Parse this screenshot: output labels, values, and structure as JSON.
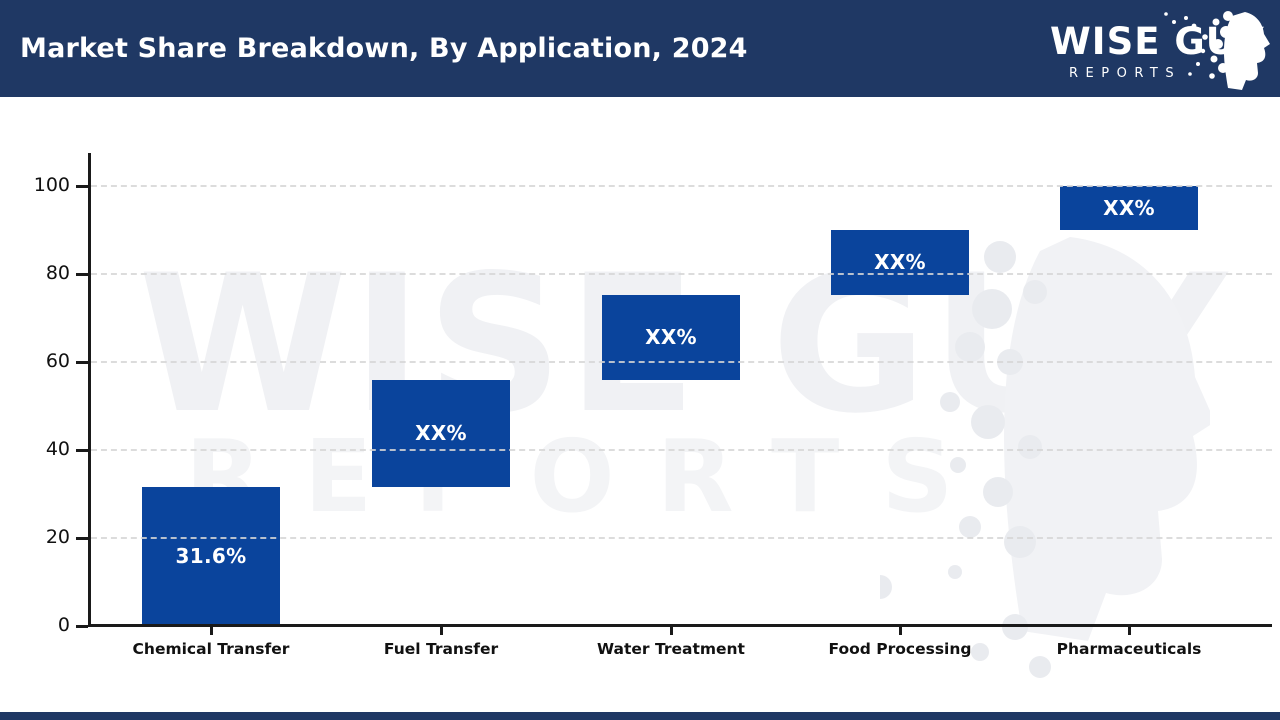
{
  "header": {
    "title": "Market Share Breakdown, By Application, 2024",
    "logo": {
      "line1": "WISE GUY",
      "line2": "R E P O R T S"
    }
  },
  "watermark": {
    "line1": "WISE GUY",
    "line2": "REPORTS"
  },
  "chart_data": {
    "type": "bar",
    "subtype": "waterfall",
    "title": "Market Share Breakdown, By Application, 2024",
    "xlabel": "",
    "ylabel": "",
    "ylim": [
      0,
      107
    ],
    "yticks": [
      0,
      20,
      40,
      60,
      80,
      100
    ],
    "grid": "horizontal-dashed",
    "legend": "none",
    "categories": [
      "Chemical Transfer",
      "Fuel Transfer",
      "Water Treatment",
      "Food Processing",
      "Pharmaceuticals"
    ],
    "segments": [
      {
        "category": "Chemical Transfer",
        "start": 0,
        "end": 31.6,
        "value": 31.6,
        "label": "31.6%"
      },
      {
        "category": "Fuel Transfer",
        "start": 31.6,
        "end": 55.9,
        "value": 24.3,
        "label": "XX%"
      },
      {
        "category": "Water Treatment",
        "start": 55.9,
        "end": 75.3,
        "value": 19.4,
        "label": "XX%"
      },
      {
        "category": "Food Processing",
        "start": 75.3,
        "end": 90.0,
        "value": 14.7,
        "label": "XX%"
      },
      {
        "category": "Pharmaceuticals",
        "start": 90.0,
        "end": 100.0,
        "value": 10.0,
        "label": "XX%"
      }
    ],
    "bar_color": "#0a449c",
    "bar_label_color": "#ffffff"
  },
  "colors": {
    "header_bg": "#1f3864",
    "footer_bg": "#1f3864",
    "bar": "#0a449c",
    "grid": "#d6d6d6",
    "axis": "#1a1a1a",
    "watermark": "#f0f1f4"
  }
}
